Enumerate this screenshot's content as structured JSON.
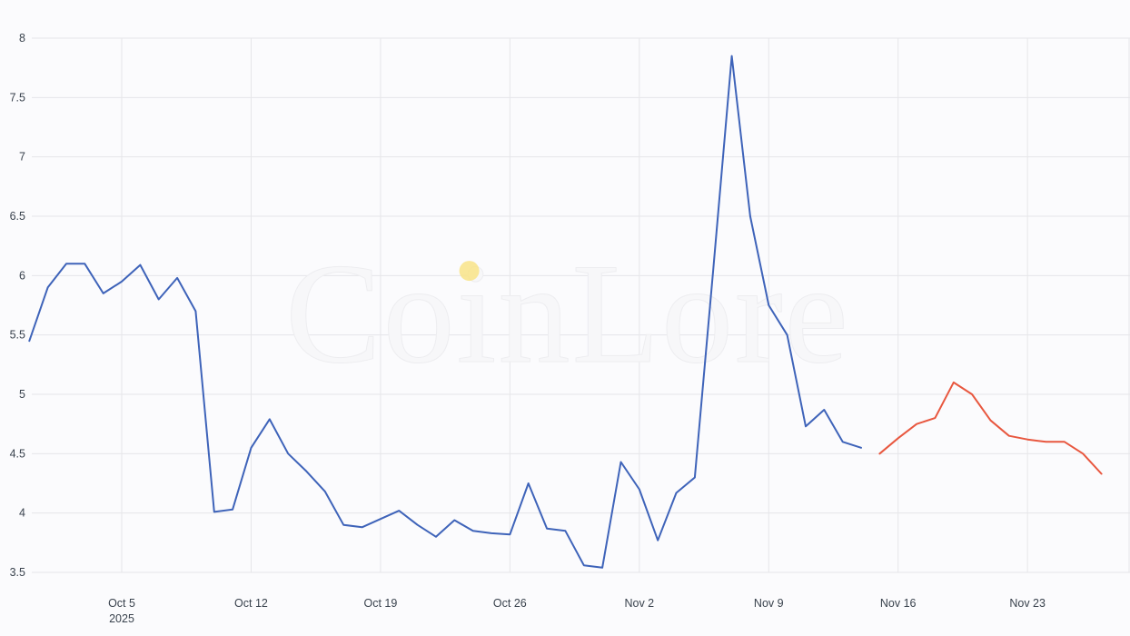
{
  "watermark": {
    "text": "CoinLore",
    "coin_dot": {
      "day": 23.8,
      "value": 6.04,
      "color": "#f9e27f"
    }
  },
  "colors": {
    "background": "#fbfbfd",
    "grid": "#e6e6e9",
    "axis_text": "#39424d",
    "watermark_fill": "#f7f7f9",
    "watermark_stroke": "#ededf0"
  },
  "chart_data": {
    "type": "line",
    "title": "",
    "xlabel": "",
    "ylabel": "",
    "ylim": [
      3.5,
      8
    ],
    "grid": true,
    "legend_position": "none",
    "y_ticks": [
      "8",
      "7.5",
      "7",
      "6.5",
      "6",
      "5.5",
      "5",
      "4.5",
      "4",
      "3.5"
    ],
    "x_ticks": [
      {
        "label": "Oct 5",
        "sublabel": "2025",
        "day": 5
      },
      {
        "label": "Oct 12",
        "day": 12
      },
      {
        "label": "Oct 19",
        "day": 19
      },
      {
        "label": "Oct 26",
        "day": 26
      },
      {
        "label": "Nov 2",
        "day": 33
      },
      {
        "label": "Nov 9",
        "day": 40
      },
      {
        "label": "Nov 16",
        "day": 47
      },
      {
        "label": "Nov 23",
        "day": 54
      }
    ],
    "series": [
      {
        "name": "blue",
        "color": "#3e63b9",
        "points": [
          [
            0,
            5.45
          ],
          [
            1,
            5.9
          ],
          [
            2,
            6.1
          ],
          [
            3,
            6.1
          ],
          [
            4,
            5.85
          ],
          [
            5,
            5.95
          ],
          [
            6,
            6.09
          ],
          [
            7,
            5.8
          ],
          [
            8,
            5.98
          ],
          [
            9,
            5.7
          ],
          [
            10,
            4.01
          ],
          [
            11,
            4.03
          ],
          [
            12,
            4.55
          ],
          [
            13,
            4.79
          ],
          [
            14,
            4.5
          ],
          [
            15,
            4.35
          ],
          [
            16,
            4.18
          ],
          [
            17,
            3.9
          ],
          [
            18,
            3.88
          ],
          [
            19,
            3.95
          ],
          [
            20,
            4.02
          ],
          [
            21,
            3.9
          ],
          [
            22,
            3.8
          ],
          [
            23,
            3.94
          ],
          [
            24,
            3.85
          ],
          [
            25,
            3.83
          ],
          [
            26,
            3.82
          ],
          [
            27,
            4.25
          ],
          [
            28,
            3.87
          ],
          [
            29,
            3.85
          ],
          [
            30,
            3.56
          ],
          [
            31,
            3.54
          ],
          [
            32,
            4.43
          ],
          [
            33,
            4.2
          ],
          [
            34,
            3.77
          ],
          [
            35,
            4.17
          ],
          [
            36,
            4.3
          ],
          [
            37,
            6.05
          ],
          [
            38,
            7.85
          ],
          [
            39,
            6.5
          ],
          [
            40,
            5.75
          ],
          [
            41,
            5.5
          ],
          [
            42,
            4.73
          ],
          [
            43,
            4.87
          ],
          [
            44,
            4.6
          ],
          [
            45,
            4.55
          ]
        ]
      },
      {
        "name": "orange",
        "color": "#e8573f",
        "points": [
          [
            46,
            4.5
          ],
          [
            47,
            4.63
          ],
          [
            48,
            4.75
          ],
          [
            49,
            4.8
          ],
          [
            50,
            5.1
          ],
          [
            51,
            5.0
          ],
          [
            52,
            4.78
          ],
          [
            53,
            4.65
          ],
          [
            54,
            4.62
          ],
          [
            55,
            4.6
          ],
          [
            56,
            4.6
          ],
          [
            57,
            4.5
          ],
          [
            58,
            4.33
          ]
        ]
      }
    ]
  }
}
